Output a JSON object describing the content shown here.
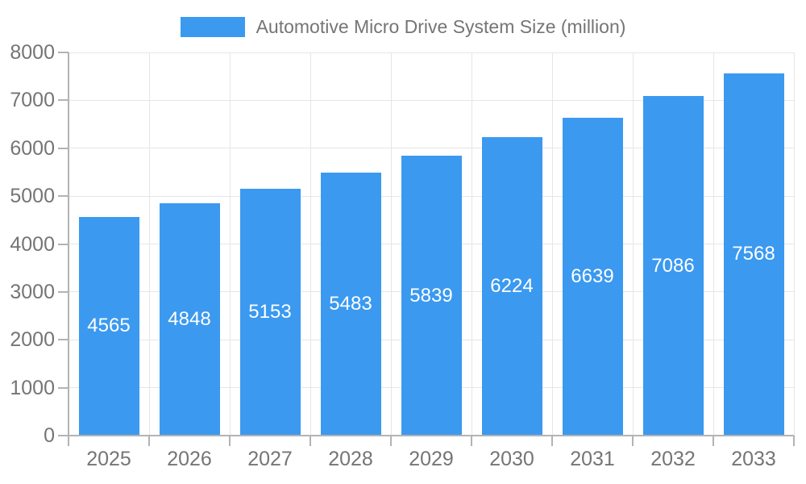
{
  "chart_data": {
    "type": "bar",
    "title": "",
    "legend": "Automotive Micro Drive System Size (million)",
    "legend_position": "top",
    "categories": [
      "2025",
      "2026",
      "2027",
      "2028",
      "2029",
      "2030",
      "2031",
      "2032",
      "2033"
    ],
    "values": [
      4565,
      4848,
      5153,
      5483,
      5839,
      6224,
      6639,
      7086,
      7568
    ],
    "series": [
      {
        "name": "Automotive Micro Drive System Size (million)",
        "values": [
          4565,
          4848,
          5153,
          5483,
          5839,
          6224,
          6639,
          7086,
          7568
        ]
      }
    ],
    "xlabel": "",
    "ylabel": "",
    "ylim": [
      0,
      8000
    ],
    "yticks": [
      0,
      1000,
      2000,
      3000,
      4000,
      5000,
      6000,
      7000,
      8000
    ],
    "grid": true,
    "bar_value_labels_visible": true,
    "colors": {
      "bar": "#3B99F0",
      "bar_label": "#FFFFFF",
      "axis_text": "#757575",
      "grid_line": "#E6E6E6",
      "axis_line": "#B3B3B3",
      "background": "#FFFFFF"
    }
  }
}
